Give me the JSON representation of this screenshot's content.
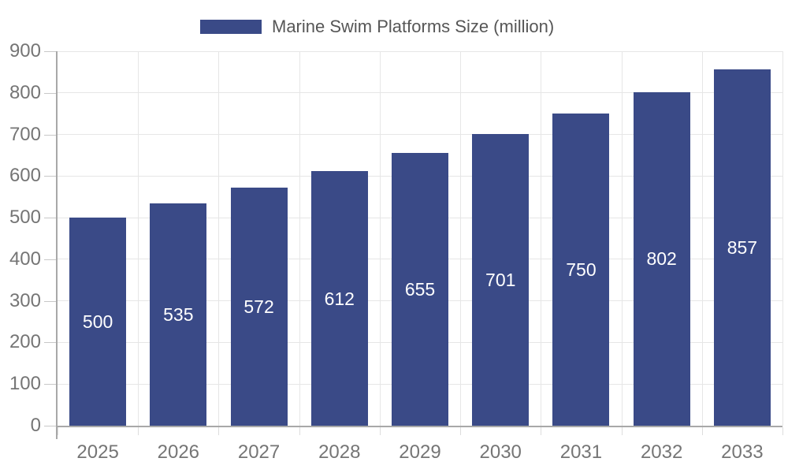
{
  "chart_data": {
    "type": "bar",
    "title": "Marine Swim Platforms Size (million)",
    "legend": {
      "position": "top",
      "label": "Marine Swim Platforms Size (million)"
    },
    "categories": [
      "2025",
      "2026",
      "2027",
      "2028",
      "2029",
      "2030",
      "2031",
      "2032",
      "2033"
    ],
    "series": [
      {
        "name": "Marine Swim Platforms Size (million)",
        "values": [
          500,
          535,
          572,
          612,
          655,
          701,
          750,
          802,
          857
        ]
      }
    ],
    "ylim": [
      0,
      900
    ],
    "ytick_step": 100,
    "yticks": [
      0,
      100,
      200,
      300,
      400,
      500,
      600,
      700,
      800,
      900
    ],
    "grid": true,
    "colors": {
      "bar": "#3a4a87",
      "bar_label": "#ffffff",
      "tick_label": "#757575",
      "legend_text": "#565656",
      "gridline": "#e6e6e6",
      "axis_line": "#a8a8a8",
      "tick": "#c8c8c8",
      "minor_tick": "#dddddd",
      "background": "#ffffff"
    }
  }
}
